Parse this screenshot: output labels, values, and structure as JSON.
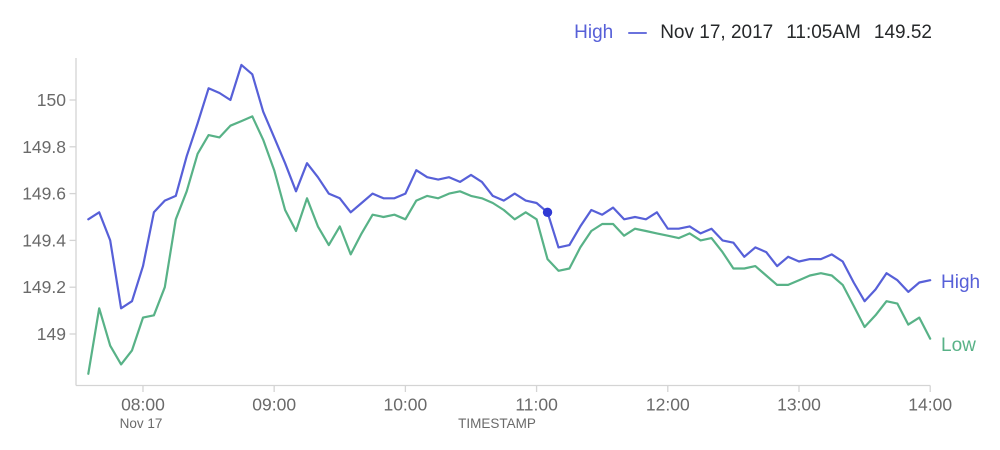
{
  "header": {
    "series_label": "High",
    "date": "Nov 17, 2017",
    "time": "11:05AM",
    "value": "149.52"
  },
  "colors": {
    "high_line": "#5760d8",
    "low_line": "#58b287",
    "selected_dot": "#3039d4",
    "axis_line": "#d4d4d4",
    "tick_text": "#6a6a6a",
    "header_text": "#26282a"
  },
  "chart_data": {
    "type": "line",
    "title": "",
    "xlabel": "TIMESTAMP",
    "x_date_label": "Nov 17",
    "grid": false,
    "legend_position": "top-right",
    "ylim": [
      148.78,
      150.16
    ],
    "y_ticks": [
      150,
      149.8,
      149.6,
      149.4,
      149.2,
      149
    ],
    "x_ticks": [
      "08:00",
      "09:00",
      "10:00",
      "11:00",
      "12:00",
      "13:00",
      "14:00"
    ],
    "x": [
      "07:35",
      "07:40",
      "07:45",
      "07:50",
      "07:55",
      "08:00",
      "08:05",
      "08:10",
      "08:15",
      "08:20",
      "08:25",
      "08:30",
      "08:35",
      "08:40",
      "08:45",
      "08:50",
      "08:55",
      "09:00",
      "09:05",
      "09:10",
      "09:15",
      "09:20",
      "09:25",
      "09:30",
      "09:35",
      "09:40",
      "09:45",
      "09:50",
      "09:55",
      "10:00",
      "10:05",
      "10:10",
      "10:15",
      "10:20",
      "10:25",
      "10:30",
      "10:35",
      "10:40",
      "10:45",
      "10:50",
      "10:55",
      "11:00",
      "11:05",
      "11:10",
      "11:15",
      "11:20",
      "11:25",
      "11:30",
      "11:35",
      "11:40",
      "11:45",
      "11:50",
      "11:55",
      "12:00",
      "12:05",
      "12:10",
      "12:15",
      "12:20",
      "12:25",
      "12:30",
      "12:35",
      "12:40",
      "12:45",
      "12:50",
      "12:55",
      "13:00",
      "13:05",
      "13:10",
      "13:15",
      "13:20",
      "13:25",
      "13:30",
      "13:35",
      "13:40",
      "13:45",
      "13:50",
      "13:55",
      "14:00"
    ],
    "series": [
      {
        "name": "Low",
        "color_key": "low_line",
        "values": [
          148.83,
          149.11,
          148.95,
          148.87,
          148.93,
          149.07,
          149.08,
          149.2,
          149.49,
          149.61,
          149.77,
          149.85,
          149.84,
          149.89,
          149.91,
          149.93,
          149.83,
          149.7,
          149.53,
          149.44,
          149.58,
          149.46,
          149.38,
          149.46,
          149.34,
          149.43,
          149.51,
          149.5,
          149.51,
          149.49,
          149.57,
          149.59,
          149.58,
          149.6,
          149.61,
          149.59,
          149.58,
          149.56,
          149.53,
          149.49,
          149.52,
          149.49,
          149.32,
          149.27,
          149.28,
          149.37,
          149.44,
          149.47,
          149.47,
          149.42,
          149.45,
          149.44,
          149.43,
          149.42,
          149.41,
          149.43,
          149.4,
          149.41,
          149.35,
          149.28,
          149.28,
          149.29,
          149.25,
          149.21,
          149.21,
          149.23,
          149.25,
          149.26,
          149.25,
          149.21,
          149.12,
          149.03,
          149.08,
          149.14,
          149.13,
          149.04,
          149.07,
          148.98
        ]
      },
      {
        "name": "High",
        "color_key": "high_line",
        "values": [
          149.49,
          149.52,
          149.4,
          149.11,
          149.14,
          149.29,
          149.52,
          149.57,
          149.59,
          149.76,
          149.9,
          150.05,
          150.03,
          150.0,
          150.15,
          150.11,
          149.95,
          149.84,
          149.73,
          149.61,
          149.73,
          149.67,
          149.6,
          149.58,
          149.52,
          149.56,
          149.6,
          149.58,
          149.58,
          149.6,
          149.7,
          149.67,
          149.66,
          149.67,
          149.65,
          149.68,
          149.65,
          149.59,
          149.57,
          149.6,
          149.57,
          149.56,
          149.52,
          149.37,
          149.38,
          149.46,
          149.53,
          149.51,
          149.54,
          149.49,
          149.5,
          149.49,
          149.52,
          149.45,
          149.45,
          149.46,
          149.43,
          149.45,
          149.4,
          149.39,
          149.33,
          149.37,
          149.35,
          149.29,
          149.33,
          149.31,
          149.32,
          149.32,
          149.34,
          149.31,
          149.22,
          149.14,
          149.19,
          149.26,
          149.23,
          149.18,
          149.22,
          149.23
        ]
      }
    ],
    "selected": {
      "series": "High",
      "x": "11:05",
      "value": 149.52
    },
    "end_labels": {
      "high": "High",
      "low": "Low"
    }
  }
}
